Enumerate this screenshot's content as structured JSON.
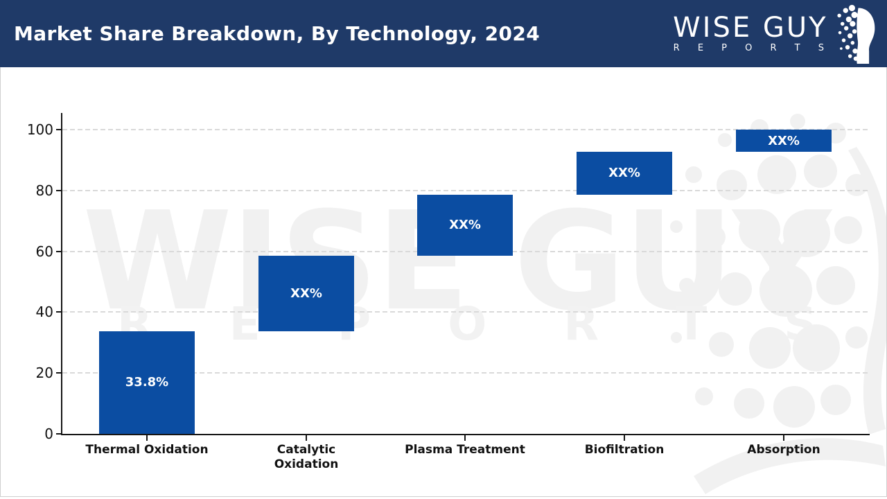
{
  "header": {
    "title": "Market Share Breakdown, By Technology, 2024",
    "logo": {
      "line1": "WISE GUY",
      "line2": "R E P O R T S"
    },
    "bg_color": "#1f3a68"
  },
  "watermark": {
    "line1": "WISE GUY",
    "line2": "R E P O R T S"
  },
  "chart_data": {
    "type": "bar",
    "variant": "waterfall",
    "title": "Market Share Breakdown, By Technology, 2024",
    "xlabel": "",
    "ylabel": "",
    "categories": [
      "Thermal Oxidation",
      "Catalytic\nOxidation",
      "Plasma Treatment",
      "Biofiltration",
      "Absorption"
    ],
    "segments": [
      {
        "category": "Thermal Oxidation",
        "start": 0,
        "end": 33.8,
        "size": 33.8,
        "label": "33.8%"
      },
      {
        "category": "Catalytic Oxidation",
        "start": 33.8,
        "end": 58.6,
        "size": 24.8,
        "label": "XX%"
      },
      {
        "category": "Plasma Treatment",
        "start": 58.6,
        "end": 78.7,
        "size": 20.1,
        "label": "XX%"
      },
      {
        "category": "Biofiltration",
        "start": 78.7,
        "end": 92.6,
        "size": 13.9,
        "label": "XX%"
      },
      {
        "category": "Absorption",
        "start": 92.6,
        "end": 100,
        "size": 7.4,
        "label": "XX%"
      }
    ],
    "yticks": [
      0,
      20,
      40,
      60,
      80,
      100
    ],
    "ylim": [
      0,
      105.5
    ],
    "grid": "horizontal-dashed",
    "legend": "none",
    "bar_color": "#0b4da2",
    "bar_label_color": "#ffffff",
    "axis_color": "#151515",
    "grid_color": "#d9d9d9"
  }
}
